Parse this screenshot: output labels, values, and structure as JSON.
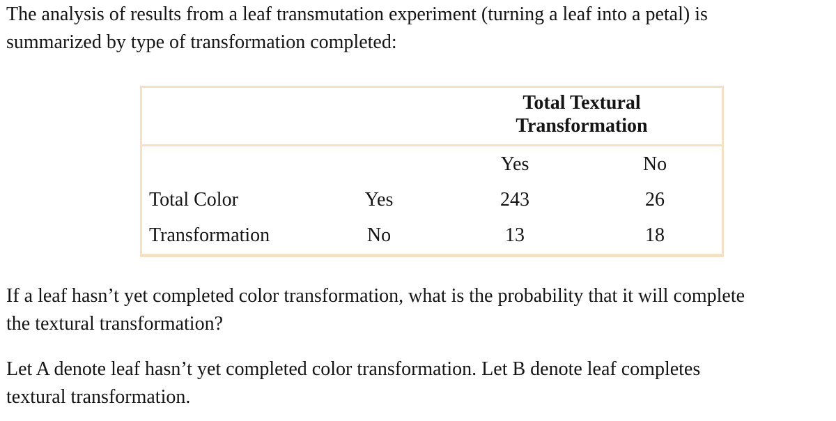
{
  "colors": {
    "table_border": "#f5e1c6",
    "text": "#141414",
    "background": "#ffffff"
  },
  "intro": {
    "lines": [
      "The analysis of results from a leaf transmutation experiment (turning a leaf into a petal) is",
      "summarized by type of transformation completed:"
    ]
  },
  "table": {
    "column_group_header_lines": [
      "Total Textural",
      "Transformation"
    ],
    "column_headers": [
      "Yes",
      "No"
    ],
    "row_group_header_lines": [
      "Total Color",
      "Transformation"
    ],
    "rows": [
      {
        "label": "Yes",
        "textural_yes": "243",
        "textural_no": "26"
      },
      {
        "label": "No",
        "textural_yes": "13",
        "textural_no": "18"
      }
    ]
  },
  "question": {
    "lines": [
      "If a leaf hasn’t yet completed color transformation, what is the probability that it will complete",
      "the textural transformation?"
    ]
  },
  "definitions": {
    "lines": [
      "Let A denote leaf hasn’t yet completed color transformation. Let B denote leaf completes",
      "textural transformation."
    ]
  }
}
